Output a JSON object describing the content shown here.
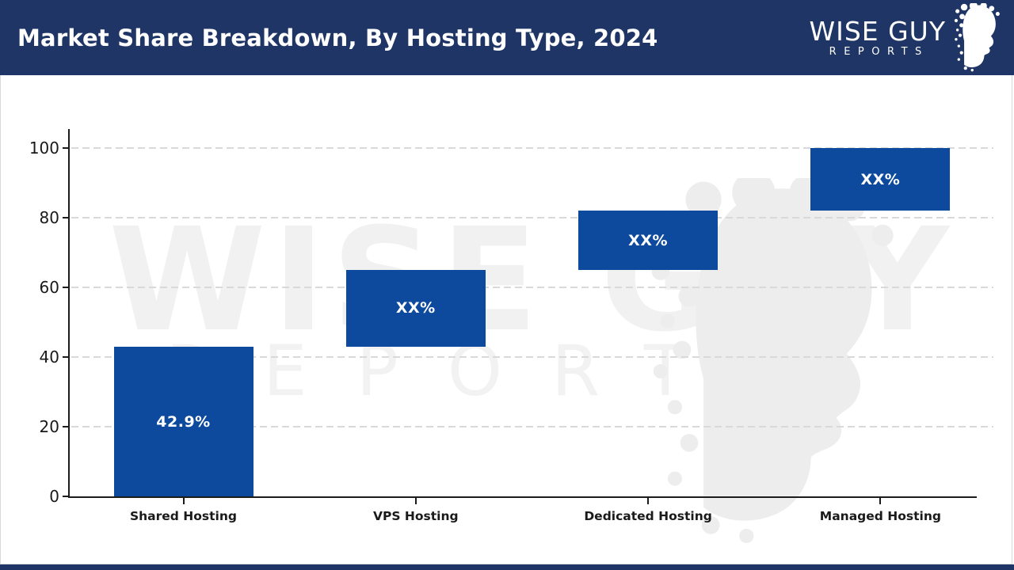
{
  "header": {
    "title": "Market Share Breakdown, By Hosting Type, 2024",
    "logo": {
      "wordmark": "WISE GUY",
      "subtext": "REPORTS"
    }
  },
  "watermark": {
    "wordmark": "WISE GUY",
    "subtext": "REPORTS"
  },
  "chart_data": {
    "type": "bar",
    "subtype": "waterfall",
    "title": "Market Share Breakdown, By Hosting Type, 2024",
    "xlabel": "",
    "ylabel": "",
    "ylim": [
      0,
      105.5
    ],
    "y_ticks": [
      0,
      20,
      40,
      60,
      80,
      100
    ],
    "grid": "horizontal-dashed",
    "legend": "none",
    "categories": [
      "Shared Hosting",
      "VPS Hosting",
      "Dedicated Hosting",
      "Managed Hosting"
    ],
    "bars": [
      {
        "category": "Shared Hosting",
        "start": 0,
        "end": 42.9,
        "label": "42.9%"
      },
      {
        "category": "VPS Hosting",
        "start": 43,
        "end": 65,
        "label": "XX%"
      },
      {
        "category": "Dedicated Hosting",
        "start": 65,
        "end": 82,
        "label": "XX%"
      },
      {
        "category": "Managed Hosting",
        "start": 82,
        "end": 100,
        "label": "XX%"
      }
    ],
    "bar_color": "#0d4a9e",
    "bar_label_color": "#ffffff"
  },
  "colors": {
    "header_bg": "#1f3565",
    "footer_bg": "#1f3565",
    "bar": "#0d4a9e",
    "grid": "#d9d9d9",
    "axis": "#1c1c1c",
    "watermark": "#f1f1f1"
  }
}
